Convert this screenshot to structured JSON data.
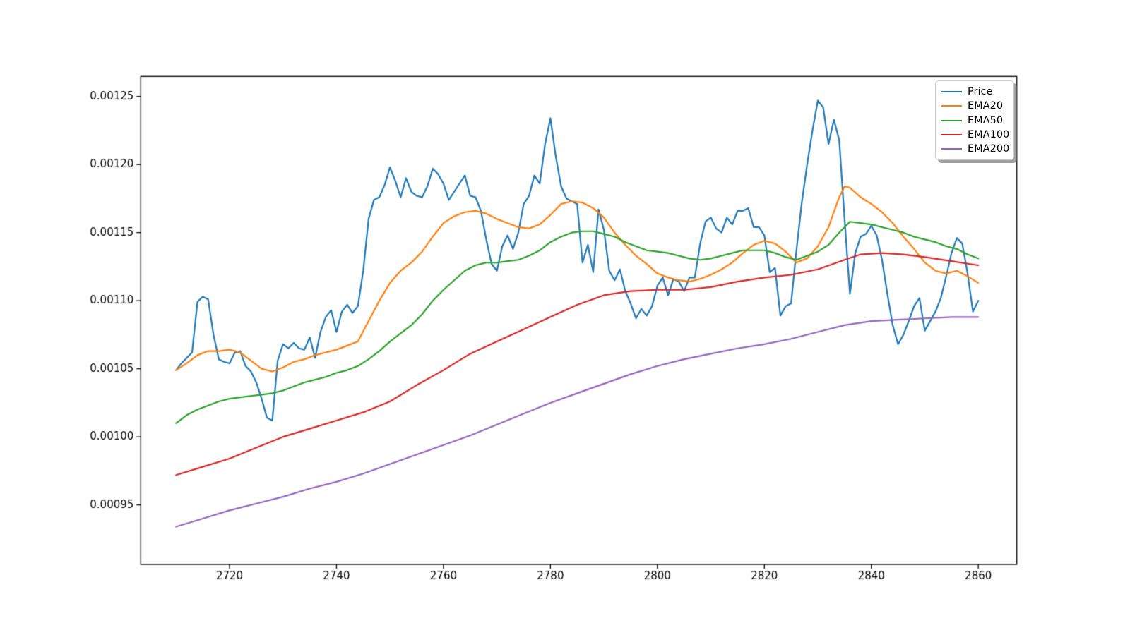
{
  "chart_data": {
    "type": "line",
    "title": "",
    "xlabel": "",
    "ylabel": "",
    "grid": false,
    "background": "#ffffff",
    "axis_color": "#000000",
    "tick_label_color": "#000000",
    "xlim": [
      2703.4,
      2867.2
    ],
    "ylim_micro": [
      906.3,
      1264.7
    ],
    "value_scale": 1e-06,
    "x_tick_values": [
      2720,
      2740,
      2760,
      2780,
      2800,
      2820,
      2840,
      2860
    ],
    "x_tick_labels": [
      "2720",
      "2740",
      "2760",
      "2780",
      "2800",
      "2820",
      "2840",
      "2860"
    ],
    "y_tick_values_micro": [
      950,
      1000,
      1050,
      1100,
      1150,
      1200,
      1250
    ],
    "y_tick_labels": [
      "0.00095",
      "0.00100",
      "0.00105",
      "0.00110",
      "0.00115",
      "0.00120",
      "0.00125"
    ],
    "legend": {
      "position": "upper right",
      "entries": [
        {
          "label": "Price",
          "color": "#1f77b4"
        },
        {
          "label": "EMA20",
          "color": "#ff7f0e"
        },
        {
          "label": "EMA50",
          "color": "#2ca02c"
        },
        {
          "label": "EMA100",
          "color": "#d62728"
        },
        {
          "label": "EMA200",
          "color": "#9467bd"
        }
      ]
    },
    "series": [
      {
        "name": "Price",
        "color": "#1f77b4",
        "line_width": 2.2,
        "x_start": 2710,
        "x_step": 1,
        "values": [
          1049,
          1054,
          1058,
          1062,
          1099,
          1103,
          1101,
          1075,
          1057,
          1055,
          1054,
          1062,
          1063,
          1052,
          1048,
          1040,
          1028,
          1014,
          1012,
          1056,
          1068,
          1065,
          1069,
          1065,
          1064,
          1073,
          1058,
          1077,
          1088,
          1093,
          1077,
          1092,
          1097,
          1091,
          1096,
          1122,
          1160,
          1174,
          1176,
          1185,
          1198,
          1188,
          1176,
          1190,
          1180,
          1177,
          1176,
          1184,
          1197,
          1193,
          1186,
          1174,
          1180,
          1186,
          1192,
          1177,
          1176,
          1166,
          1145,
          1127,
          1122,
          1140,
          1148,
          1138,
          1150,
          1171,
          1177,
          1192,
          1186,
          1215,
          1234,
          1206,
          1184,
          1175,
          1173,
          1171,
          1128,
          1141,
          1121,
          1167,
          1152,
          1122,
          1115,
          1123,
          1107,
          1098,
          1087,
          1094,
          1089,
          1096,
          1111,
          1117,
          1104,
          1116,
          1114,
          1107,
          1117,
          1117,
          1142,
          1158,
          1161,
          1153,
          1150,
          1161,
          1156,
          1166,
          1166,
          1168,
          1154,
          1154,
          1148,
          1121,
          1124,
          1089,
          1096,
          1098,
          1137,
          1172,
          1200,
          1225,
          1247,
          1242,
          1215,
          1233,
          1218,
          1160,
          1105,
          1135,
          1147,
          1149,
          1155,
          1148,
          1130,
          1105,
          1082,
          1068,
          1075,
          1085,
          1096,
          1102,
          1078,
          1085,
          1092,
          1102,
          1118,
          1135,
          1146,
          1142,
          1120,
          1092,
          1100
        ]
      },
      {
        "name": "EMA20",
        "color": "#ff7f0e",
        "line_width": 2.2,
        "x": [
          2710,
          2712,
          2714,
          2716,
          2718,
          2720,
          2722,
          2724,
          2726,
          2728,
          2730,
          2732,
          2734,
          2736,
          2738,
          2740,
          2742,
          2744,
          2746,
          2748,
          2750,
          2752,
          2754,
          2756,
          2758,
          2760,
          2762,
          2764,
          2766,
          2768,
          2770,
          2772,
          2774,
          2776,
          2778,
          2780,
          2782,
          2784,
          2786,
          2788,
          2790,
          2792,
          2794,
          2796,
          2798,
          2800,
          2802,
          2804,
          2806,
          2808,
          2810,
          2812,
          2814,
          2816,
          2818,
          2820,
          2822,
          2824,
          2826,
          2828,
          2830,
          2832,
          2834,
          2835,
          2836,
          2838,
          2840,
          2842,
          2844,
          2846,
          2848,
          2850,
          2852,
          2854,
          2856,
          2858,
          2860
        ],
        "values": [
          1049,
          1054,
          1060,
          1063,
          1063,
          1064,
          1062,
          1056,
          1050,
          1048,
          1051,
          1055,
          1057,
          1060,
          1062,
          1064,
          1067,
          1070,
          1085,
          1100,
          1113,
          1122,
          1128,
          1136,
          1147,
          1157,
          1162,
          1165,
          1166,
          1164,
          1160,
          1157,
          1154,
          1153,
          1156,
          1163,
          1171,
          1173,
          1172,
          1168,
          1161,
          1150,
          1141,
          1133,
          1127,
          1120,
          1117,
          1115,
          1114,
          1116,
          1119,
          1123,
          1128,
          1135,
          1141,
          1144,
          1142,
          1136,
          1128,
          1131,
          1140,
          1154,
          1176,
          1184,
          1183,
          1176,
          1171,
          1165,
          1157,
          1147,
          1138,
          1128,
          1122,
          1120,
          1122,
          1118,
          1113
        ]
      },
      {
        "name": "EMA50",
        "color": "#2ca02c",
        "line_width": 2.2,
        "x": [
          2710,
          2712,
          2714,
          2716,
          2718,
          2720,
          2722,
          2724,
          2726,
          2728,
          2730,
          2732,
          2734,
          2736,
          2738,
          2740,
          2742,
          2744,
          2746,
          2748,
          2750,
          2752,
          2754,
          2756,
          2758,
          2760,
          2762,
          2764,
          2766,
          2768,
          2770,
          2772,
          2774,
          2776,
          2778,
          2780,
          2782,
          2784,
          2786,
          2788,
          2790,
          2792,
          2794,
          2796,
          2798,
          2800,
          2802,
          2804,
          2806,
          2808,
          2810,
          2812,
          2814,
          2816,
          2818,
          2820,
          2822,
          2824,
          2826,
          2828,
          2830,
          2832,
          2834,
          2836,
          2838,
          2840,
          2842,
          2844,
          2846,
          2848,
          2850,
          2852,
          2854,
          2856,
          2858,
          2860
        ],
        "values": [
          1010,
          1016,
          1020,
          1023,
          1026,
          1028,
          1029,
          1030,
          1031,
          1032,
          1034,
          1037,
          1040,
          1042,
          1044,
          1047,
          1049,
          1052,
          1057,
          1063,
          1070,
          1076,
          1082,
          1090,
          1100,
          1108,
          1115,
          1122,
          1126,
          1128,
          1128,
          1129,
          1130,
          1133,
          1137,
          1143,
          1147,
          1150,
          1151,
          1151,
          1149,
          1147,
          1143,
          1140,
          1137,
          1136,
          1135,
          1133,
          1131,
          1130,
          1131,
          1133,
          1135,
          1137,
          1137,
          1137,
          1135,
          1132,
          1130,
          1133,
          1136,
          1141,
          1150,
          1158,
          1157,
          1156,
          1154,
          1152,
          1150,
          1147,
          1145,
          1143,
          1140,
          1138,
          1134,
          1131
        ]
      },
      {
        "name": "EMA100",
        "color": "#d62728",
        "line_width": 2.2,
        "x": [
          2710,
          2715,
          2720,
          2725,
          2730,
          2735,
          2740,
          2745,
          2750,
          2755,
          2760,
          2765,
          2770,
          2775,
          2780,
          2785,
          2790,
          2795,
          2800,
          2805,
          2810,
          2815,
          2820,
          2825,
          2830,
          2835,
          2838,
          2842,
          2846,
          2850,
          2855,
          2860
        ],
        "values": [
          972,
          978,
          984,
          992,
          1000,
          1006,
          1012,
          1018,
          1026,
          1038,
          1049,
          1061,
          1070,
          1079,
          1088,
          1097,
          1104,
          1107,
          1108,
          1108,
          1110,
          1114,
          1117,
          1119,
          1123,
          1130,
          1134,
          1135,
          1134,
          1132,
          1129,
          1126
        ]
      },
      {
        "name": "EMA200",
        "color": "#9467bd",
        "line_width": 2.2,
        "x": [
          2710,
          2715,
          2720,
          2725,
          2730,
          2735,
          2740,
          2745,
          2750,
          2755,
          2760,
          2765,
          2770,
          2775,
          2780,
          2785,
          2790,
          2795,
          2800,
          2805,
          2810,
          2815,
          2820,
          2825,
          2830,
          2835,
          2840,
          2845,
          2850,
          2855,
          2860
        ],
        "values": [
          934,
          940,
          946,
          951,
          956,
          962,
          967,
          973,
          980,
          987,
          994,
          1001,
          1009,
          1017,
          1025,
          1032,
          1039,
          1046,
          1052,
          1057,
          1061,
          1065,
          1068,
          1072,
          1077,
          1082,
          1085,
          1086,
          1087,
          1088,
          1088
        ]
      }
    ]
  }
}
